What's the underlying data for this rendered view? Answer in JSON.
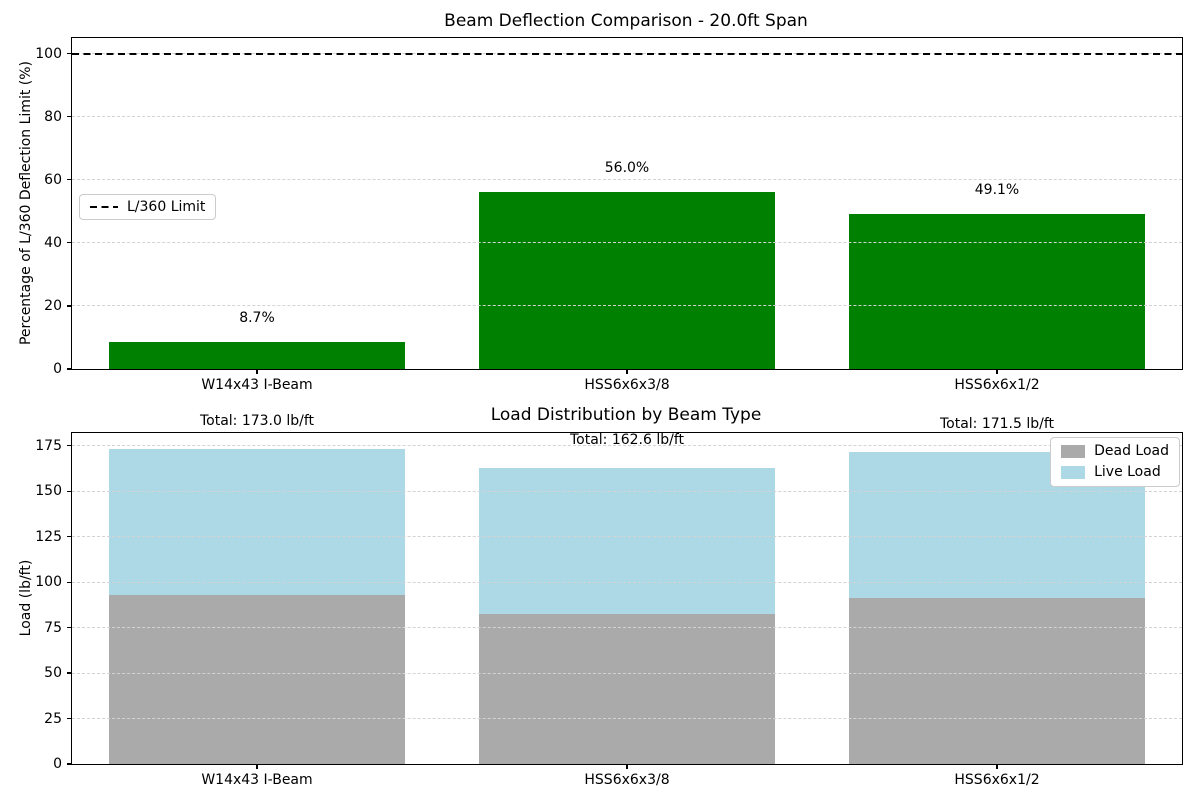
{
  "figure": {
    "background": "#ffffff"
  },
  "chart_data": [
    {
      "type": "bar",
      "title": "Beam Deflection Comparison - 20.0ft Span",
      "xlabel": "",
      "ylabel": "Percentage of L/360 Deflection Limit (%)",
      "categories": [
        "W14x43 I-Beam",
        "HSS6x6x3/8",
        "HSS6x6x1/2"
      ],
      "values": [
        8.7,
        56.0,
        49.1
      ],
      "bar_labels": [
        "8.7%",
        "56.0%",
        "49.1%"
      ],
      "bar_color": "#008000",
      "yticks": [
        0,
        20,
        40,
        60,
        80,
        100
      ],
      "ylim": [
        0,
        105
      ],
      "grid": "horizontal-dashed",
      "reference_line": {
        "y": 100,
        "style": "dashed",
        "color": "#000000"
      },
      "legend": {
        "position": "center-left",
        "entries": [
          {
            "label": "L/360 Limit",
            "swatch": "dashed-black-line"
          }
        ]
      }
    },
    {
      "type": "stacked-bar",
      "title": "Load Distribution by Beam Type",
      "xlabel": "",
      "ylabel": "Load (lb/ft)",
      "categories": [
        "W14x43 I-Beam",
        "HSS6x6x3/8",
        "HSS6x6x1/2"
      ],
      "series": [
        {
          "name": "Dead Load",
          "color": "#aaaaaa",
          "values": [
            93.0,
            82.6,
            91.5
          ]
        },
        {
          "name": "Live Load",
          "color": "#add8e6",
          "values": [
            80.0,
            80.0,
            80.0
          ]
        }
      ],
      "totals": [
        173.0,
        162.6,
        171.5
      ],
      "total_labels": [
        "Total: 173.0 lb/ft",
        "Total: 162.6 lb/ft",
        "Total: 171.5 lb/ft"
      ],
      "yticks": [
        0,
        25,
        50,
        75,
        100,
        125,
        150,
        175
      ],
      "ylim": [
        0,
        182
      ],
      "grid": "horizontal-dashed",
      "legend": {
        "position": "upper-right",
        "entries": [
          {
            "label": "Dead Load",
            "swatch": "#aaaaaa"
          },
          {
            "label": "Live Load",
            "swatch": "#add8e6"
          }
        ]
      }
    }
  ],
  "style": {
    "grid_color": "#d3d3d3",
    "spine_color": "#000000",
    "text_color": "#000000"
  }
}
